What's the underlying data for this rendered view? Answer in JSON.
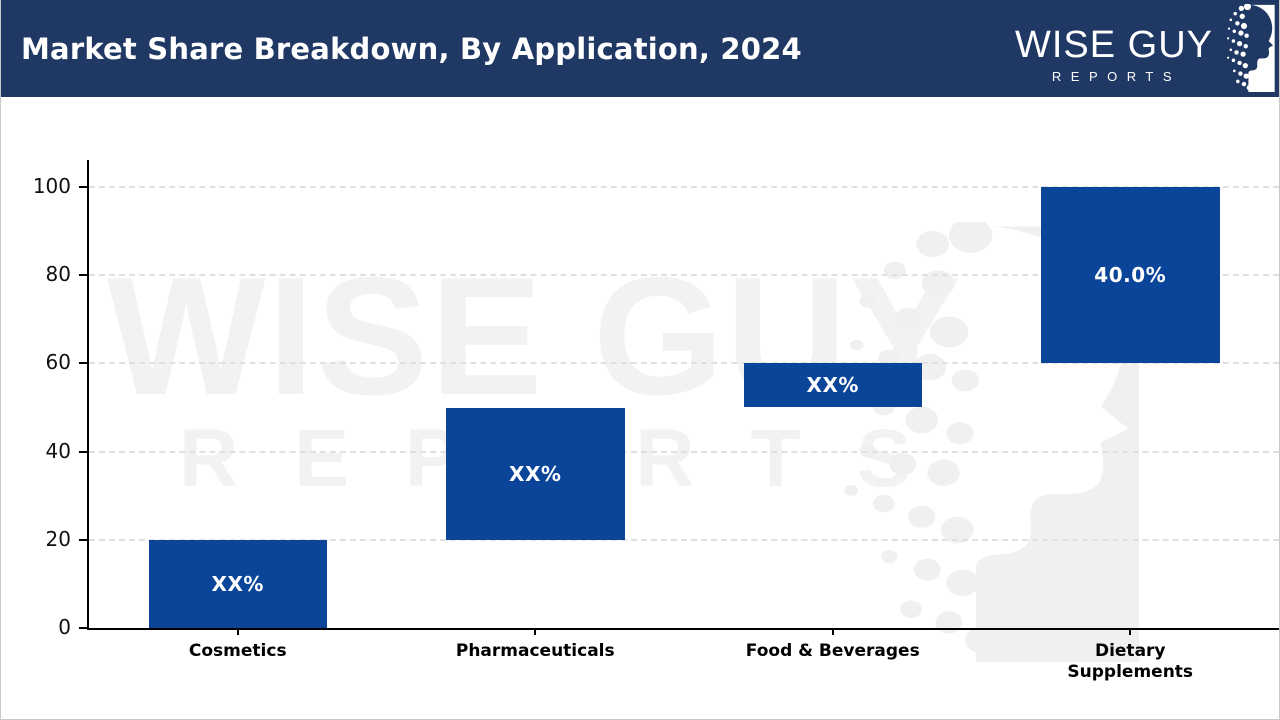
{
  "header": {
    "title": "Market Share Breakdown, By Application, 2024",
    "logo": {
      "line1": "WISE GUY",
      "line2": "REPORTS"
    }
  },
  "watermark": {
    "line1": "WISE GUY",
    "line2": "REPORTS"
  },
  "colors": {
    "header_bg": "#1f3864",
    "bar": "#0b4599",
    "grid": "#e0e0e0",
    "axis": "#000000",
    "watermark": "#f2f2f2",
    "title_text": "#ffffff",
    "bar_label_text": "#ffffff",
    "tick_text": "#111111"
  },
  "chart_data": {
    "type": "bar",
    "subtype": "waterfall",
    "title": "Market Share Breakdown, By Application, 2024",
    "categories": [
      "Cosmetics",
      "Pharmaceuticals",
      "Food & Beverages",
      "Dietary Supplements"
    ],
    "bars": [
      {
        "category": "Cosmetics",
        "label_lines": [
          "Cosmetics"
        ],
        "start": 0,
        "end": 20,
        "value_label": "XX%"
      },
      {
        "category": "Pharmaceuticals",
        "label_lines": [
          "Pharmaceuticals"
        ],
        "start": 20,
        "end": 50,
        "value_label": "XX%"
      },
      {
        "category": "Food & Beverages",
        "label_lines": [
          "Food & Beverages"
        ],
        "start": 50,
        "end": 60,
        "value_label": "XX%"
      },
      {
        "category": "Dietary Supplements",
        "label_lines": [
          "Dietary",
          "Supplements"
        ],
        "start": 60,
        "end": 100,
        "value_label": "40.0%"
      }
    ],
    "ylim": [
      0,
      100
    ],
    "yticks": [
      0,
      20,
      40,
      60,
      80,
      100
    ],
    "grid": "horizontal-dashed",
    "legend": "none",
    "bar_color": "#0b4599",
    "bar_width_fraction": 0.6
  }
}
